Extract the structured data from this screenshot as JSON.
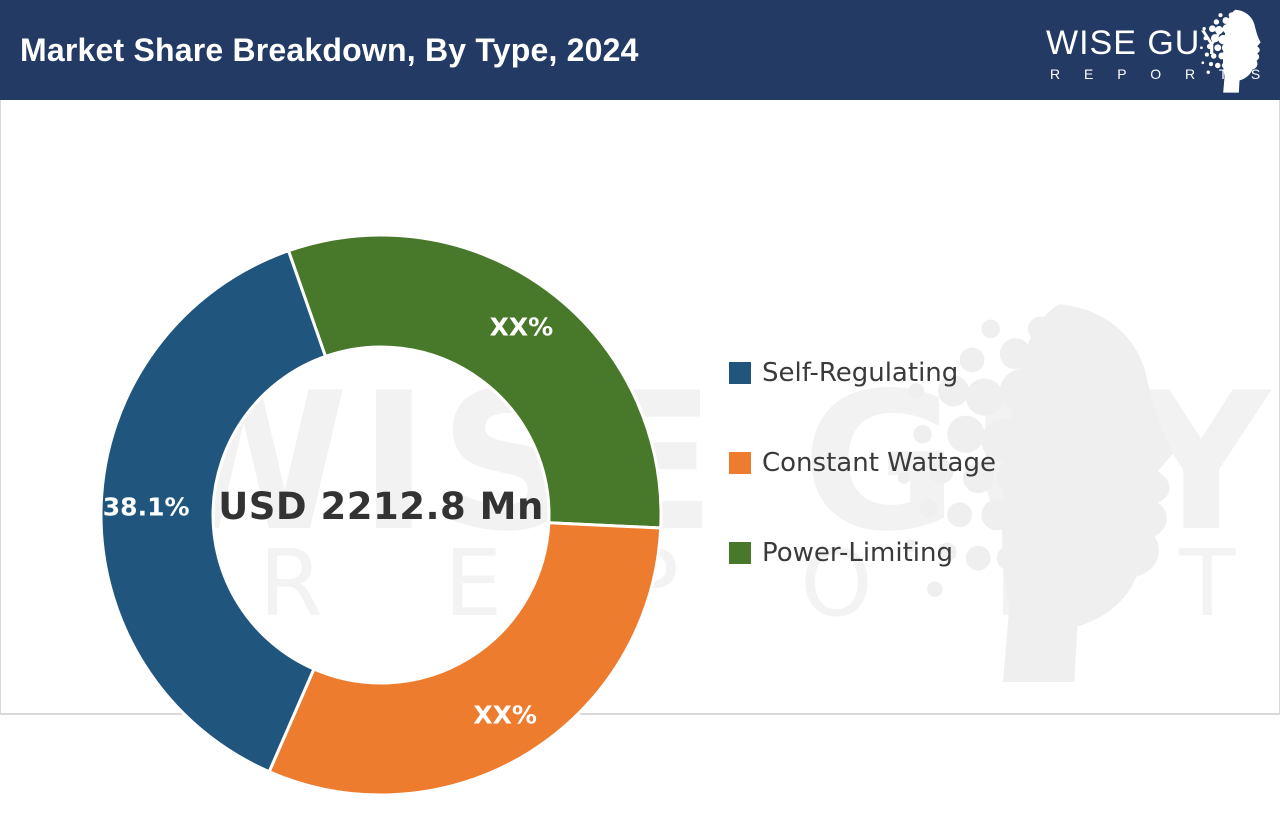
{
  "header": {
    "title": "Market Share Breakdown, By Type, 2024",
    "bg_color": "#223A64",
    "logo": {
      "name": "WISE GUY",
      "sub": "R E P O R T S"
    }
  },
  "watermark": {
    "line1": "WISE GUY",
    "line2": "R E P O R T S"
  },
  "chart_data": {
    "type": "pie",
    "subtype": "donut",
    "title": "Market Share Breakdown, By Type, 2024",
    "center_label": "USD 2212.8 Mn",
    "start_angle_deg": -19.3,
    "inner_radius_ratio": 0.6,
    "separator_color": "#ffffff",
    "slices": [
      {
        "name": "Power-Limiting",
        "display_label": "XX%",
        "percent": 31.1,
        "color": "#487829"
      },
      {
        "name": "Constant Wattage",
        "display_label": "XX%",
        "percent": 30.8,
        "color": "#ED7C2F"
      },
      {
        "name": "Self-Regulating",
        "display_label": "38.1%",
        "percent": 38.1,
        "color": "#20567D"
      }
    ],
    "legend": [
      {
        "label": "Self-Regulating",
        "color": "#20567D"
      },
      {
        "label": "Constant Wattage",
        "color": "#ED7C2F"
      },
      {
        "label": "Power-Limiting",
        "color": "#487829"
      }
    ],
    "legend_position": "right"
  }
}
